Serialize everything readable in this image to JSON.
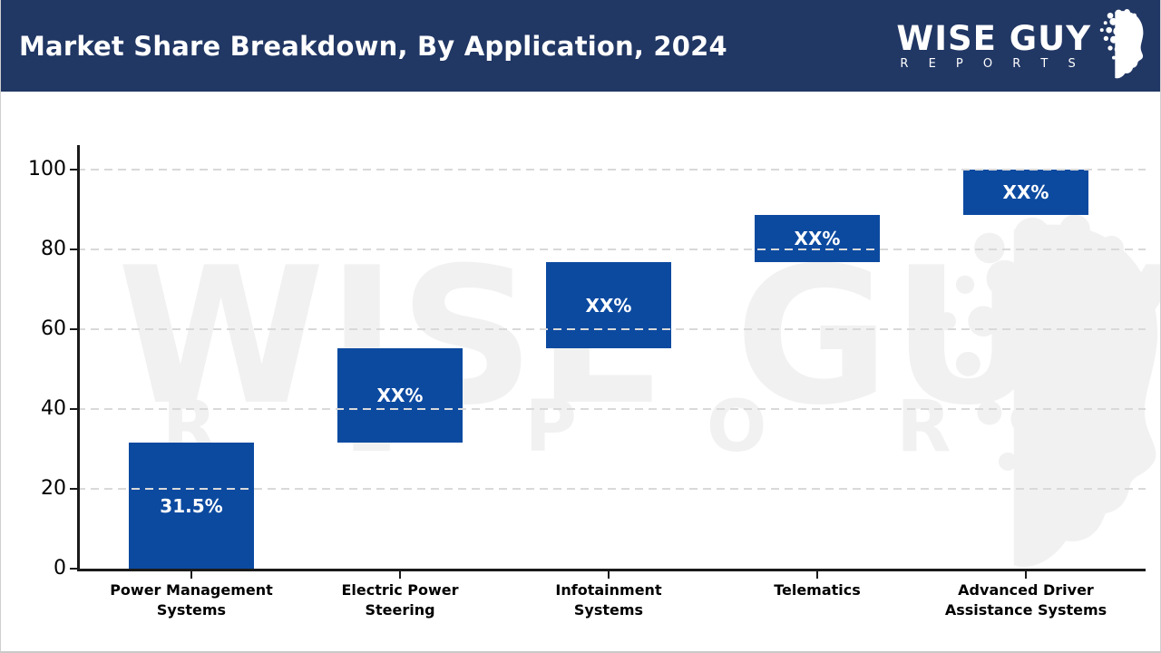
{
  "header": {
    "title": "Market Share Breakdown, By Application, 2024",
    "bg_color": "#213764",
    "logo": {
      "line1": "WISE GUY",
      "line2": "R E P O R T S"
    }
  },
  "watermark": {
    "line1": "WISE GUY",
    "line2": "R E P O R T S",
    "color": "#f1f1f1"
  },
  "chart_data": {
    "type": "bar",
    "subtype": "floating-segment-waterfall",
    "title": "Market Share Breakdown, By Application, 2024",
    "categories": [
      "Power Management\nSystems",
      "Electric Power\nSteering",
      "Infotainment\nSystems",
      "Telematics",
      "Advanced Driver\nAssistance Systems"
    ],
    "segments": [
      {
        "category": "Power Management Systems",
        "start": 0,
        "end": 31.5,
        "label": "31.5%"
      },
      {
        "category": "Electric Power Steering",
        "start": 31.5,
        "end": 55.2,
        "label": "XX%"
      },
      {
        "category": "Infotainment Systems",
        "start": 55.2,
        "end": 76.8,
        "label": "XX%"
      },
      {
        "category": "Telematics",
        "start": 76.8,
        "end": 88.6,
        "label": "XX%"
      },
      {
        "category": "Advanced Driver Assistance Systems",
        "start": 88.6,
        "end": 100,
        "label": "XX%"
      }
    ],
    "bar_color": "#0c4aa0",
    "xlabel": "",
    "ylabel": "",
    "ylim": [
      0,
      100
    ],
    "yticks": [
      0,
      20,
      40,
      60,
      80,
      100
    ],
    "grid": "horizontal dashed gridlines drawn over bars",
    "legend": "none"
  }
}
